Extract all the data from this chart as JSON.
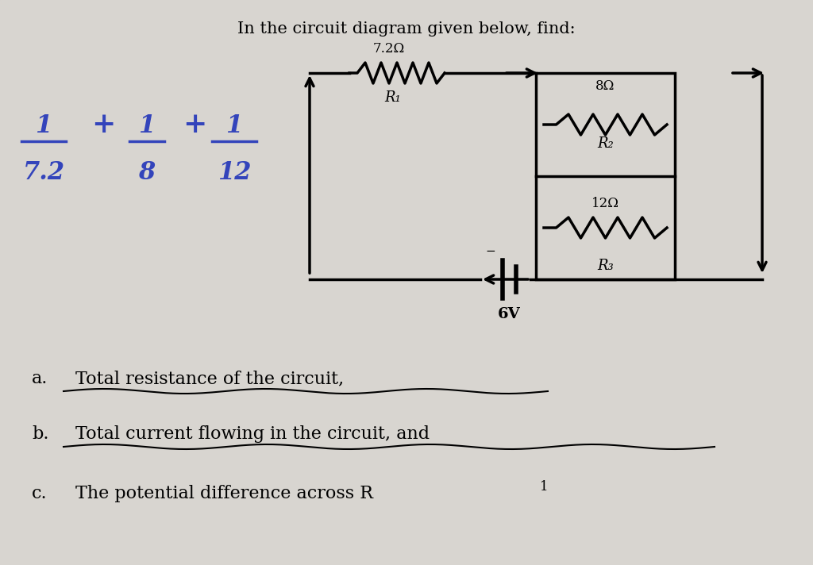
{
  "title": "In the circuit diagram given below, find:",
  "title_fontsize": 15,
  "background_color": "#ccc8c4",
  "text_color": "#000000",
  "blue_color": "#3344bb",
  "items": [
    {
      "label": "a.",
      "text": "Total resistance of the circuit,"
    },
    {
      "label": "b.",
      "text": "Total current flowing in the circuit, and"
    },
    {
      "label": "c.",
      "text": "The potential difference across R"
    }
  ],
  "circuit": {
    "R1_label": "R₁",
    "R1_value": "7.2Ω",
    "R2_label": "R₂",
    "R2_value": "8Ω",
    "R3_label": "R₃",
    "R3_value": "12Ω",
    "battery_label": "6V"
  }
}
